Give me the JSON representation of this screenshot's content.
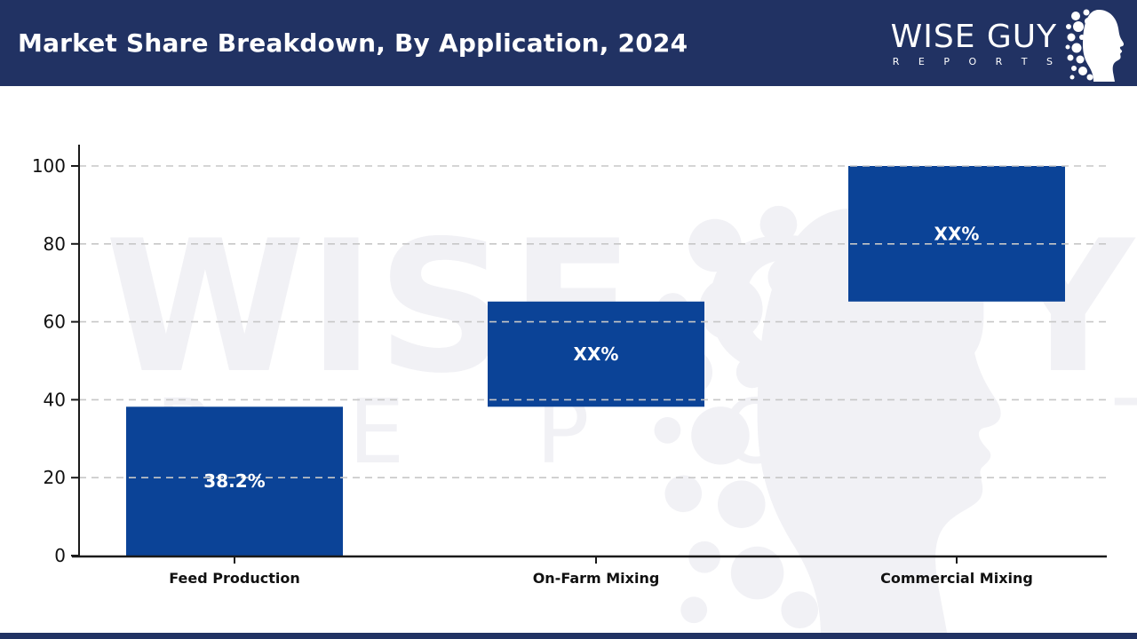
{
  "header": {
    "title": "Market Share Breakdown, By Application, 2024",
    "logo": {
      "line1": "WISE GUY",
      "line2": "R E P O R T S"
    }
  },
  "watermark": {
    "line1": "WISE GUY",
    "line2": "R E P O R T S"
  },
  "footer": {},
  "colors": {
    "header_bg": "#213263",
    "footer_bg": "#213263",
    "bar": "#0b4397",
    "bar_label": "#ffffff",
    "grid": "#c7c7c7",
    "axis": "#1a1a1a",
    "tick_label": "#111111",
    "watermark": "#f1f1f5"
  },
  "chart_data": {
    "type": "bar",
    "subtype": "waterfall",
    "title": "Market Share Breakdown, By Application, 2024",
    "categories": [
      "Feed Production",
      "On-Farm Mixing",
      "Commercial Mixing"
    ],
    "segments": [
      {
        "category": "Feed Production",
        "start": 0,
        "end": 38.2,
        "label": "38.2%"
      },
      {
        "category": "On-Farm Mixing",
        "start": 38.2,
        "end": 65.2,
        "label": "XX%"
      },
      {
        "category": "Commercial Mixing",
        "start": 65.2,
        "end": 100,
        "label": "XX%"
      }
    ],
    "xlabel": "",
    "ylabel": "",
    "ylim": [
      0,
      100
    ],
    "yticks": [
      0,
      20,
      40,
      60,
      80,
      100
    ],
    "grid": "dashed-horizontal",
    "legend": "none",
    "bar_color": "#0b4397"
  }
}
